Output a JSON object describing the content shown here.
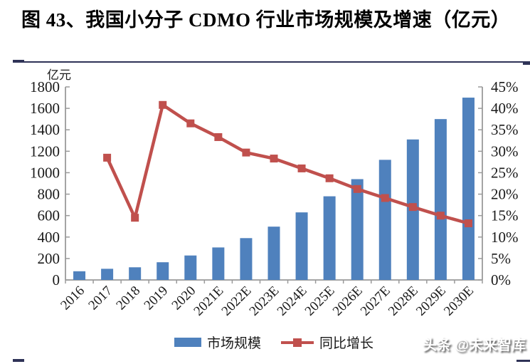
{
  "title": "图 43、我国小分子 CDMO 行业市场规模及增速（亿元）",
  "watermark": "头条 @未来智库",
  "colors": {
    "bar": "#4F81BD",
    "line": "#C0504D",
    "axis": "#9A9A9A",
    "separator": "#2F3357",
    "tick_text": "#1a1a1a"
  },
  "chart_data": {
    "type": "bar",
    "subtype": "bar+line-combo",
    "title": "我国小分子CDMO行业市场规模及增速",
    "categories": [
      "2016",
      "2017",
      "2018",
      "2019",
      "2020",
      "2021E",
      "2022E",
      "2023E",
      "2024E",
      "2025E",
      "2026E",
      "2027E",
      "2028E",
      "2029E",
      "2030E"
    ],
    "series": [
      {
        "name": "市场规模",
        "type": "bar",
        "axis": "left",
        "unit": "亿元",
        "values": [
          81,
          104,
          118,
          165,
          228,
          303,
          390,
          497,
          630,
          780,
          940,
          1120,
          1310,
          1500,
          1700
        ]
      },
      {
        "name": "同比增长",
        "type": "line",
        "axis": "right",
        "unit": "%",
        "values": [
          null,
          28.5,
          14.5,
          40.8,
          36.5,
          33.3,
          29.7,
          28.3,
          26.0,
          23.7,
          21.2,
          19.1,
          17.0,
          15.0,
          13.2
        ]
      }
    ],
    "left_axis": {
      "label": "亿元",
      "min": 0,
      "max": 1800,
      "step": 200
    },
    "right_axis": {
      "label": "",
      "min": 0,
      "max": 45,
      "step": 5,
      "suffix": "%"
    },
    "grid": false,
    "legend_position": "bottom"
  }
}
